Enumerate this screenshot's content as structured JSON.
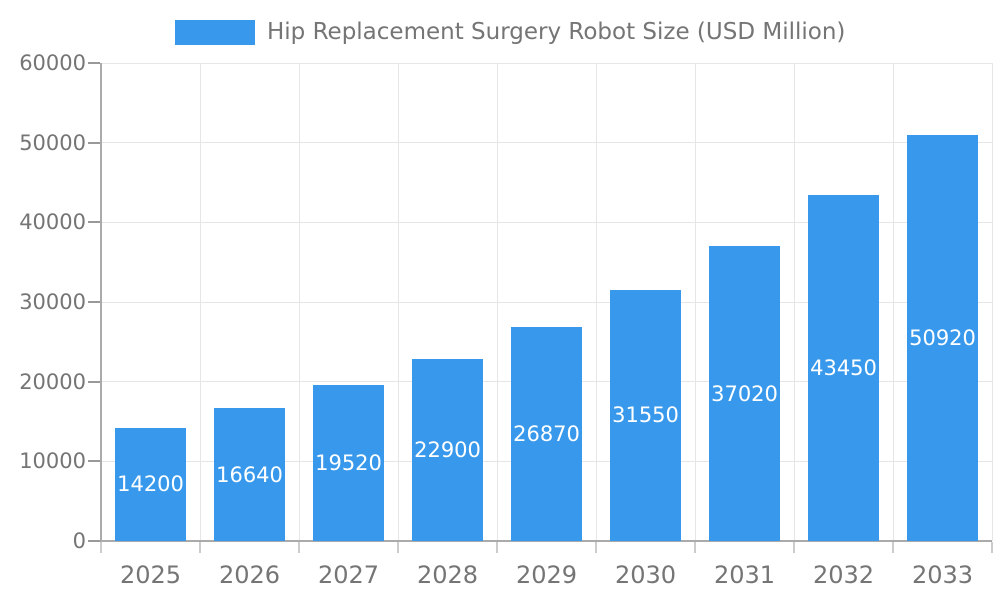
{
  "legend": {
    "label": "Hip Replacement Surgery Robot Size (USD Million)",
    "swatch_color": "#3899ec"
  },
  "chart_data": {
    "type": "bar",
    "title": "Hip Replacement Surgery Robot Size (USD Million)",
    "series_name": "Hip Replacement Surgery Robot Size (USD Million)",
    "categories": [
      "2025",
      "2026",
      "2027",
      "2028",
      "2029",
      "2030",
      "2031",
      "2032",
      "2033"
    ],
    "values": [
      14200,
      16640,
      19520,
      22900,
      26870,
      31550,
      37020,
      43450,
      50920
    ],
    "value_labels": [
      "14200",
      "16640",
      "19520",
      "22900",
      "26870",
      "31550",
      "37020",
      "43450",
      "50920"
    ],
    "xlabel": "",
    "ylabel": "",
    "ylim": [
      0,
      60000
    ],
    "ytick_step": 10000,
    "yticks": [
      "0",
      "10000",
      "20000",
      "30000",
      "40000",
      "50000",
      "60000"
    ],
    "grid": true,
    "legend_position": "top",
    "bar_color": "#3899ec",
    "value_label_color": "#ffffff",
    "axis_text_color": "#757575",
    "gridline_color": "#e6e6e6",
    "axis_line_color": "#aaaaaa"
  }
}
